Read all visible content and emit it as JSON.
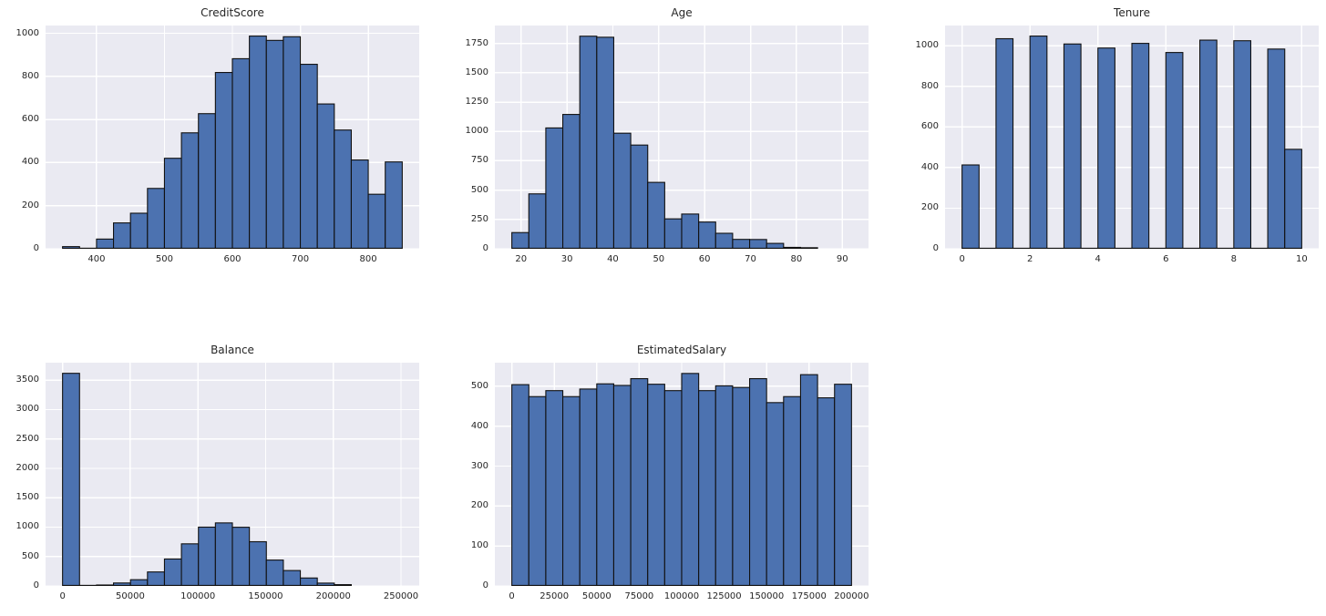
{
  "figure": {
    "background": "#ffffff",
    "plot_background": "#eaeaf2",
    "grid_color": "#ffffff",
    "bar_fill": "#4c72b0",
    "bar_edge": "#111111",
    "text_color": "#262626"
  },
  "chart_data": [
    {
      "type": "bar",
      "subtype": "histogram",
      "title": "CreditScore",
      "bin_start": 350,
      "bin_width": 25,
      "values": [
        10,
        2,
        45,
        120,
        165,
        280,
        420,
        538,
        627,
        818,
        882,
        987,
        967,
        984,
        856,
        672,
        551,
        412,
        253,
        403
      ],
      "xticks": [
        400,
        500,
        600,
        700,
        800
      ],
      "yticks": [
        0,
        200,
        400,
        600,
        800,
        1000
      ],
      "xlim": [
        325,
        875
      ],
      "ylim": [
        0,
        1036
      ],
      "grid": true,
      "legend": "none"
    },
    {
      "type": "bar",
      "subtype": "histogram",
      "title": "Age",
      "bin_start": 18,
      "bin_width": 3.7,
      "values": [
        138,
        468,
        1030,
        1145,
        1812,
        1803,
        985,
        884,
        566,
        255,
        296,
        228,
        132,
        80,
        79,
        46,
        12,
        9,
        0,
        0
      ],
      "xticks": [
        20,
        30,
        40,
        50,
        60,
        70,
        80,
        90
      ],
      "yticks": [
        0,
        250,
        500,
        750,
        1000,
        1250,
        1500,
        1750
      ],
      "xlim": [
        14.3,
        95.7
      ],
      "ylim": [
        0,
        1903
      ],
      "grid": true,
      "legend": "none"
    },
    {
      "type": "bar",
      "subtype": "histogram",
      "title": "Tenure",
      "bin_start": 0,
      "bin_width": 0.5,
      "values": [
        413,
        0,
        1035,
        0,
        1048,
        0,
        1009,
        0,
        989,
        0,
        1012,
        0,
        967,
        0,
        1028,
        0,
        1025,
        0,
        984,
        490
      ],
      "xticks": [
        0,
        2,
        4,
        6,
        8,
        10
      ],
      "yticks": [
        0,
        200,
        400,
        600,
        800,
        1000
      ],
      "xlim": [
        -0.5,
        10.5
      ],
      "ylim": [
        0,
        1100
      ],
      "grid": true,
      "legend": "none"
    },
    {
      "type": "bar",
      "subtype": "histogram",
      "title": "Balance",
      "bin_start": 0,
      "bin_width": 12545,
      "values": [
        3617,
        3,
        16,
        50,
        106,
        238,
        458,
        716,
        1000,
        1072,
        998,
        752,
        440,
        262,
        135,
        48,
        22,
        0,
        0,
        0
      ],
      "xticks": [
        0,
        50000,
        100000,
        150000,
        200000,
        250000
      ],
      "yticks": [
        0,
        500,
        1000,
        1500,
        2000,
        2500,
        3000,
        3500
      ],
      "xlim": [
        -12545,
        263443
      ],
      "ylim": [
        0,
        3798
      ],
      "grid": true,
      "legend": "none"
    },
    {
      "type": "bar",
      "subtype": "histogram",
      "title": "EstimatedSalary",
      "bin_start": 12,
      "bin_width": 9999,
      "values": [
        504,
        474,
        489,
        474,
        493,
        506,
        502,
        519,
        505,
        489,
        532,
        489,
        501,
        497,
        519,
        459,
        474,
        529,
        471,
        505
      ],
      "xticks": [
        0,
        25000,
        50000,
        75000,
        100000,
        125000,
        150000,
        175000,
        200000
      ],
      "yticks": [
        0,
        100,
        200,
        300,
        400,
        500
      ],
      "xlim": [
        -9987,
        209991
      ],
      "ylim": [
        0,
        559
      ],
      "grid": true,
      "legend": "none"
    }
  ]
}
